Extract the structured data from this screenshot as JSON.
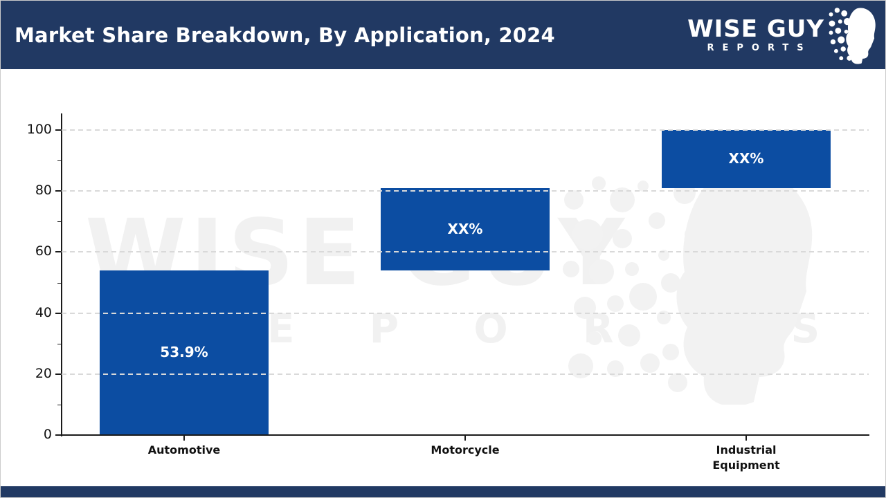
{
  "header": {
    "title": "Market Share Breakdown, By Application, 2024",
    "logo": {
      "line1": "WISE GUY",
      "line2": "REPORTS"
    }
  },
  "watermark": {
    "line1": "WISE GUY",
    "line2": "R E P O R T S"
  },
  "footer": {
    "text": ""
  },
  "colors": {
    "header_navy": "#213963",
    "bar_blue": "#0c4da2",
    "bar_label_white": "#ffffff",
    "gridline_gray": "#d9d9d9",
    "axis_black": "#1a1a1a",
    "watermark_gray": "#f1f1f1"
  },
  "chart_data": {
    "type": "bar",
    "subtype": "floating-segment-waterfall",
    "title": "Market Share Breakdown, By Application, 2024",
    "categories": [
      "Automotive",
      "Motorcycle",
      "Industrial Equipment"
    ],
    "bars": [
      {
        "category": "Automotive",
        "start": 0,
        "end": 53.9,
        "label": "53.9%"
      },
      {
        "category": "Motorcycle",
        "start": 53.9,
        "end": 81,
        "label": "XX%"
      },
      {
        "category": "Industrial Equipment",
        "start": 81,
        "end": 100,
        "label": "XX%"
      }
    ],
    "xlabel": "",
    "ylabel": "",
    "ylim": [
      0,
      105
    ],
    "yticks": [
      0,
      20,
      40,
      60,
      80,
      100
    ],
    "minor_yticks": [
      10,
      30,
      50,
      70,
      90
    ],
    "grid": "horizontal dashed, drawn over bars",
    "legend": "none"
  }
}
